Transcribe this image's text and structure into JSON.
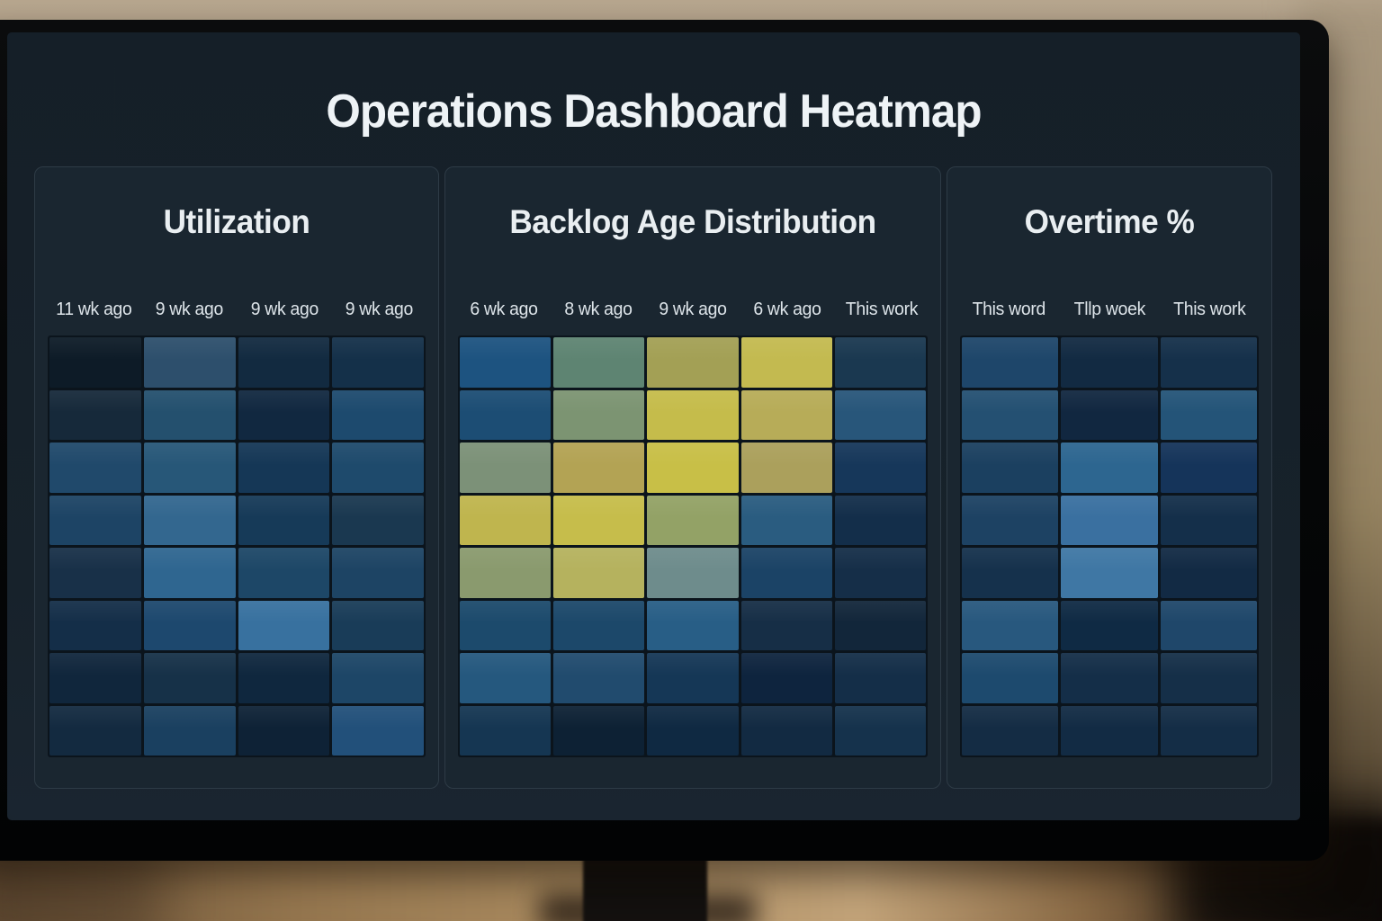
{
  "title": "Operations Dashboard Heatmap",
  "colors": {
    "screen_bg": "#151f28",
    "card_bg": "#1a2630",
    "card_border": "#2e3b46",
    "grid_gap": "#0b141c",
    "title_text": "#eef3f6",
    "panel_text": "#e9eef1",
    "label_text": "#dde4e9"
  },
  "chart_data": [
    {
      "type": "heatmap",
      "title": "Utilization",
      "columns": [
        "11 wk ago",
        "9 wk ago",
        "9 wk ago",
        "9 wk ago"
      ],
      "rows": 8,
      "legend": "none",
      "colorscale": {
        "low": "#0c1a28",
        "mid": "#33678f",
        "high": "#c8bf47"
      },
      "colors": [
        [
          "#0d1b27",
          "#2d4f6c",
          "#122a40",
          "#143049"
        ],
        [
          "#16293a",
          "#24506e",
          "#112840",
          "#1d4a6e"
        ],
        [
          "#20496b",
          "#275778",
          "#153756",
          "#1e4a6c"
        ],
        [
          "#1d4465",
          "#33678f",
          "#163a58",
          "#1a3850"
        ],
        [
          "#183048",
          "#2f6690",
          "#1d4767",
          "#1d4464"
        ],
        [
          "#142e48",
          "#1d486e",
          "#38719f",
          "#193c58"
        ],
        [
          "#10263c",
          "#163148",
          "#0f273e",
          "#1d4667"
        ],
        [
          "#132a40",
          "#1a4060",
          "#0e2236",
          "#22507a"
        ]
      ],
      "values": [
        [
          0.03,
          0.38,
          0.12,
          0.16
        ],
        [
          0.1,
          0.33,
          0.11,
          0.3
        ],
        [
          0.3,
          0.37,
          0.2,
          0.3
        ],
        [
          0.27,
          0.5,
          0.21,
          0.2
        ],
        [
          0.16,
          0.47,
          0.28,
          0.27
        ],
        [
          0.15,
          0.29,
          0.53,
          0.22
        ],
        [
          0.09,
          0.16,
          0.1,
          0.28
        ],
        [
          0.12,
          0.24,
          0.07,
          0.33
        ]
      ]
    },
    {
      "type": "heatmap",
      "title": "Backlog Age Distribution",
      "columns": [
        "6 wk ago",
        "8 wk ago",
        "9 wk ago",
        "6 wk ago",
        "This work"
      ],
      "rows": 8,
      "legend": "none",
      "colorscale": {
        "low": "#0c1a28",
        "mid": "#33678f",
        "high": "#c8bf47"
      },
      "colors": [
        [
          "#1d5380",
          "#5e8472",
          "#a3a055",
          "#c3ba50",
          "#1a3850"
        ],
        [
          "#1c4d74",
          "#7c9472",
          "#c5bc4b",
          "#b7ac58",
          "#28567a"
        ],
        [
          "#7c9178",
          "#b3a354",
          "#c8bf47",
          "#aba05c",
          "#16375a"
        ],
        [
          "#bfb54e",
          "#c6bd4b",
          "#93a266",
          "#2a5c80",
          "#132e4a"
        ],
        [
          "#8a9a6e",
          "#b5b25e",
          "#6e8c8c",
          "#1b4366",
          "#152e48"
        ],
        [
          "#1c4a6c",
          "#1c486a",
          "#285e86",
          "#162e46",
          "#12263a"
        ],
        [
          "#25587e",
          "#214b6e",
          "#153756",
          "#0e243e",
          "#142e48"
        ],
        [
          "#153652",
          "#0d2134",
          "#0f2942",
          "#122a42",
          "#15324c"
        ]
      ],
      "values": [
        [
          0.42,
          0.72,
          0.88,
          0.95,
          0.2
        ],
        [
          0.38,
          0.78,
          0.97,
          0.9,
          0.4
        ],
        [
          0.77,
          0.87,
          1.0,
          0.85,
          0.2
        ],
        [
          0.93,
          0.97,
          0.8,
          0.42,
          0.15
        ],
        [
          0.8,
          0.89,
          0.68,
          0.26,
          0.15
        ],
        [
          0.29,
          0.28,
          0.4,
          0.14,
          0.08
        ],
        [
          0.36,
          0.3,
          0.2,
          0.07,
          0.14
        ],
        [
          0.19,
          0.05,
          0.09,
          0.12,
          0.16
        ]
      ]
    },
    {
      "type": "heatmap",
      "title": "Overtime %",
      "columns": [
        "This word",
        "Tllp woek",
        "This work"
      ],
      "rows": 8,
      "legend": "none",
      "colorscale": {
        "low": "#0c1a28",
        "mid": "#33678f",
        "high": "#c8bf47"
      },
      "colors": [
        [
          "#1e466a",
          "#122a42",
          "#15304a"
        ],
        [
          "#245072",
          "#112740",
          "#245478"
        ],
        [
          "#1b4060",
          "#2d6690",
          "#15345a"
        ],
        [
          "#1d4263",
          "#3a70a0",
          "#142f4a"
        ],
        [
          "#15314c",
          "#3f77a4",
          "#122a44"
        ],
        [
          "#28587e",
          "#0f2a44",
          "#1f476a"
        ],
        [
          "#1d4a6e",
          "#142e48",
          "#152f48"
        ],
        [
          "#142c44",
          "#122b44",
          "#142d46"
        ]
      ],
      "values": [
        [
          0.26,
          0.1,
          0.15
        ],
        [
          0.32,
          0.09,
          0.34
        ],
        [
          0.23,
          0.45,
          0.17
        ],
        [
          0.25,
          0.55,
          0.14
        ],
        [
          0.15,
          0.58,
          0.1
        ],
        [
          0.37,
          0.09,
          0.27
        ],
        [
          0.29,
          0.13,
          0.14
        ],
        [
          0.12,
          0.11,
          0.13
        ]
      ]
    }
  ]
}
